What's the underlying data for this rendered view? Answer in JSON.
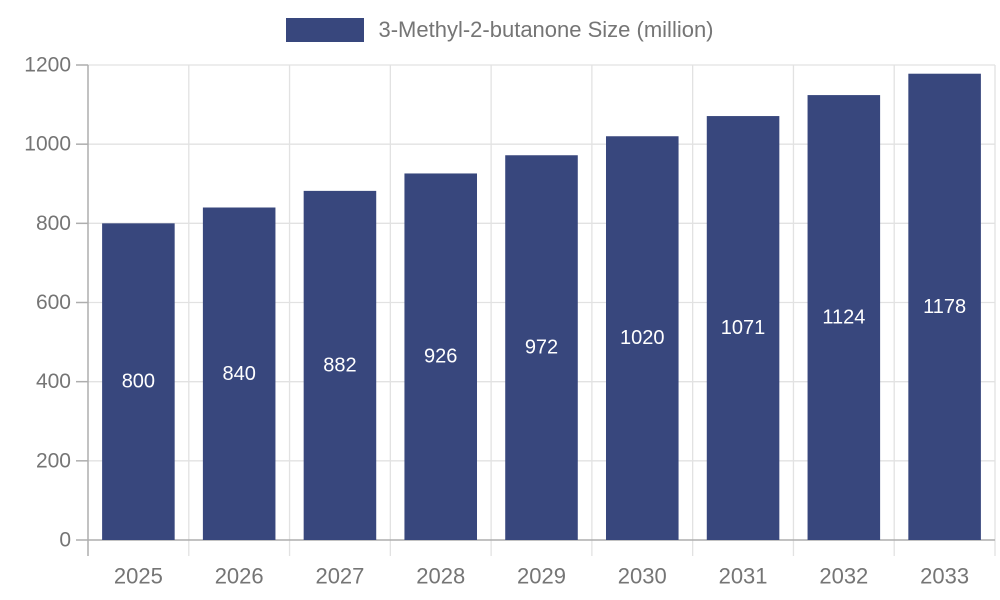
{
  "legend": {
    "label": "3-Methyl-2-butanone Size (million)"
  },
  "colors": {
    "bar": "#38477d",
    "axis": "#aeaeae",
    "grid": "#e2e2e2",
    "tick_label": "#757575",
    "bar_label": "#ffffff",
    "background": "#ffffff"
  },
  "chart_data": {
    "type": "bar",
    "title": "",
    "xlabel": "",
    "ylabel": "",
    "categories": [
      "2025",
      "2026",
      "2027",
      "2028",
      "2029",
      "2030",
      "2031",
      "2032",
      "2033"
    ],
    "series": [
      {
        "name": "3-Methyl-2-butanone Size (million)",
        "values": [
          800,
          840,
          882,
          926,
          972,
          1020,
          1071,
          1124,
          1178
        ]
      }
    ],
    "ylim": [
      0,
      1200
    ],
    "ytick_step": 200,
    "yticks": [
      0,
      200,
      400,
      600,
      800,
      1000,
      1200
    ],
    "grid": "horizontal-and-vertical",
    "legend_position": "top-center",
    "bar_value_labels": "inside-center-white"
  }
}
